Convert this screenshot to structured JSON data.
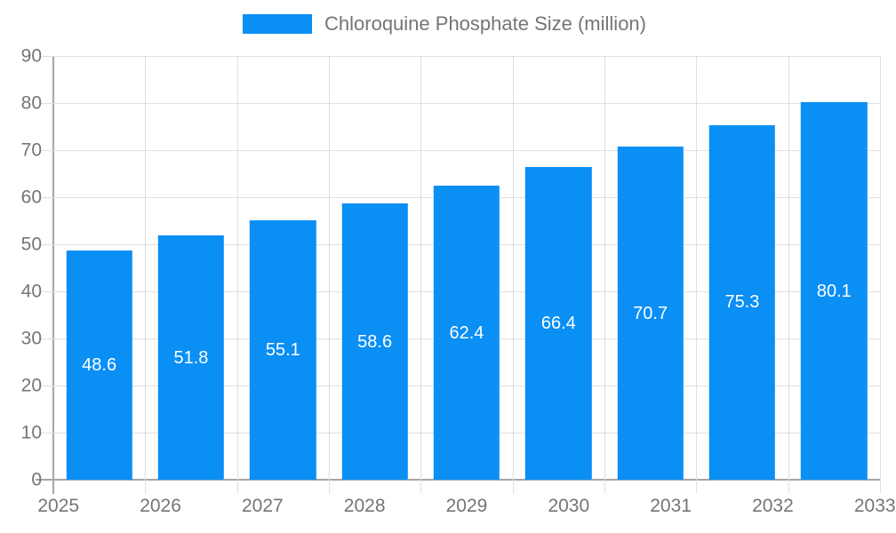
{
  "legend": {
    "label": "Chloroquine Phosphate Size (million)"
  },
  "chart_data": {
    "type": "bar",
    "title": "Chloroquine Phosphate Size (million)",
    "categories": [
      "2025",
      "2026",
      "2027",
      "2028",
      "2029",
      "2030",
      "2031",
      "2032",
      "2033"
    ],
    "values": [
      48.6,
      51.8,
      55.1,
      58.6,
      62.4,
      66.4,
      70.7,
      75.3,
      80.1
    ],
    "value_labels": [
      "48.6",
      "51.8",
      "55.1",
      "58.6",
      "62.4",
      "66.4",
      "70.7",
      "75.3",
      "80.1"
    ],
    "xlabel": "",
    "ylabel": "",
    "ylim": [
      0,
      90
    ],
    "ytick_interval": 10,
    "yticks": [
      "0",
      "10",
      "20",
      "30",
      "40",
      "50",
      "60",
      "70",
      "80",
      "90"
    ],
    "grid": true,
    "legend_position": "top-center"
  },
  "colors": {
    "bar": "#0A8FF5",
    "grid": "#e0e0e0",
    "axis": "#a6a6a6",
    "label": "#757575",
    "value_label": "#ffffff",
    "background": "#ffffff"
  }
}
